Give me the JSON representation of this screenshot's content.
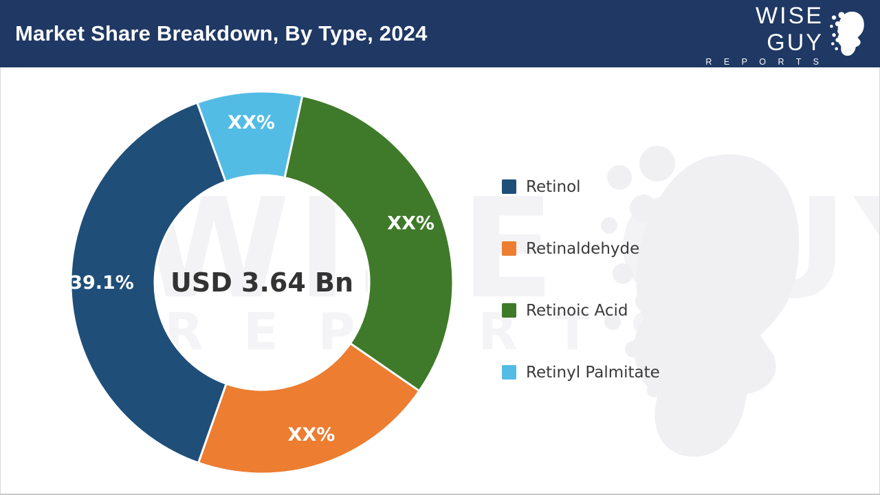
{
  "header": {
    "title": "Market Share Breakdown, By Type, 2024",
    "background": "#1F3864",
    "logo": {
      "line1": "WISE GUY",
      "line2": "R E P O R T S"
    }
  },
  "watermark": {
    "line1": "WISE GUY",
    "line2": "REPORTS"
  },
  "chart_data": {
    "type": "pie",
    "subtype": "donut",
    "title": "Market Share Breakdown, By Type, 2024",
    "center_label": "USD 3.64 Bn",
    "start_angle_deg": -19.8,
    "direction": "clockwise",
    "outer_radius_px": 278,
    "inner_radius_px": 156,
    "slice_gap_color": "#ffffff",
    "slices": [
      {
        "name": "Retinyl Palmitate",
        "value": 8.9,
        "display_label": "XX%",
        "color": "#53BCE5"
      },
      {
        "name": "Retinoic Acid",
        "value": 31.2,
        "display_label": "XX%",
        "color": "#3F7A2A"
      },
      {
        "name": "Retinaldehyde",
        "value": 20.8,
        "display_label": "XX%",
        "color": "#EC7D31"
      },
      {
        "name": "Retinol",
        "value": 39.1,
        "display_label": "39.1%",
        "color": "#1F4E79"
      }
    ],
    "legend": [
      {
        "label": "Retinol",
        "color": "#1F4E79"
      },
      {
        "label": "Retinaldehyde",
        "color": "#EC7D31"
      },
      {
        "label": "Retinoic Acid",
        "color": "#3F7A2A"
      },
      {
        "label": "Retinyl Palmitate",
        "color": "#53BCE5"
      }
    ],
    "legend_position": "right",
    "label_color": "#ffffff",
    "center_label_color": "#333333"
  }
}
